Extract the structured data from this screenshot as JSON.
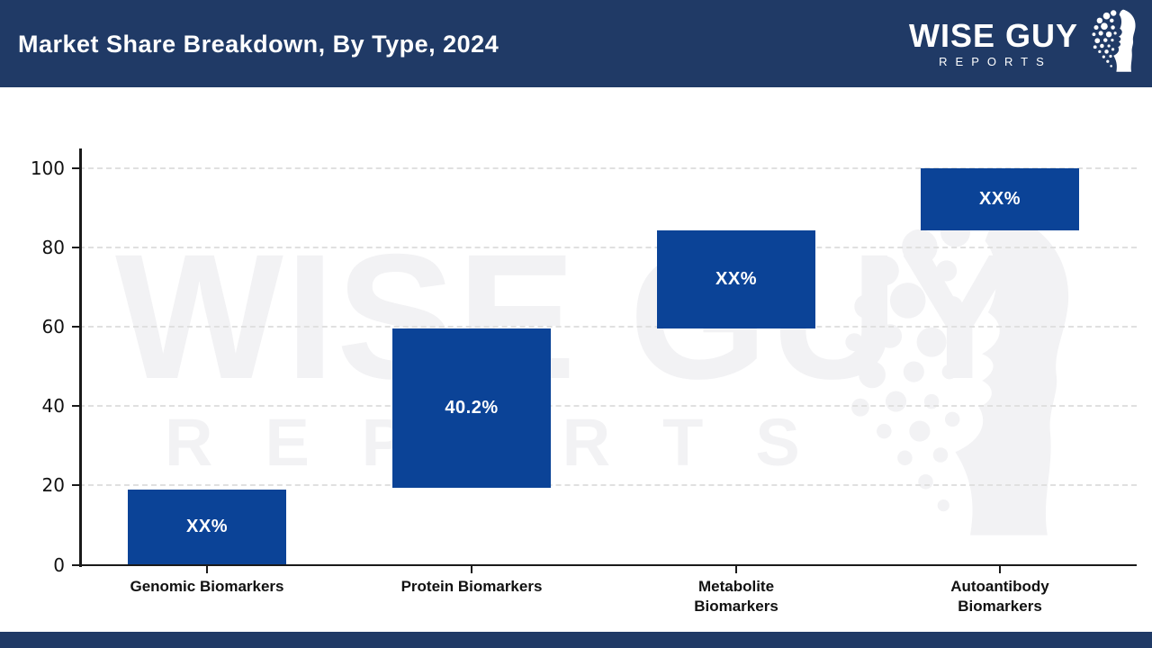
{
  "header": {
    "title": "Market Share Breakdown, By Type, 2024",
    "logo": {
      "brand_line1": "WISE GUY",
      "brand_line2": "REPORTS"
    }
  },
  "watermark": {
    "line1": "WISE GUY",
    "line2": "REPORTS"
  },
  "chart_data": {
    "type": "bar",
    "subtype": "waterfall",
    "title": "Market Share Breakdown, By Type, 2024",
    "categories": [
      "Genomic Biomarkers",
      "Protein Biomarkers",
      "Metabolite Biomarkers",
      "Autoantibody Biomarkers"
    ],
    "categories_lines": [
      [
        "Genomic Biomarkers"
      ],
      [
        "Protein Biomarkers"
      ],
      [
        "Metabolite",
        "Biomarkers"
      ],
      [
        "Autoantibody",
        "Biomarkers"
      ]
    ],
    "segments": [
      {
        "category": "Genomic Biomarkers",
        "start": 0,
        "end": 19,
        "label": "XX%"
      },
      {
        "category": "Protein Biomarkers",
        "start": 19.4,
        "end": 59.6,
        "label": "40.2%"
      },
      {
        "category": "Metabolite Biomarkers",
        "start": 59.6,
        "end": 84.3,
        "label": "XX%"
      },
      {
        "category": "Autoantibody Biomarkers",
        "start": 84.3,
        "end": 100,
        "label": "XX%"
      }
    ],
    "ylim": [
      0,
      100
    ],
    "yticks": [
      0,
      20,
      40,
      60,
      80,
      100
    ],
    "xlabel": "",
    "ylabel": "",
    "grid": true,
    "legend": "none"
  },
  "colors": {
    "header_bg": "#203a66",
    "footer_bg": "#203a66",
    "bar": "#0b4397",
    "bar_label": "#ffffff",
    "grid": "#e0e0e0",
    "axis": "#1a1a1a",
    "watermark": "#f2f2f4",
    "title_text": "#ffffff"
  }
}
